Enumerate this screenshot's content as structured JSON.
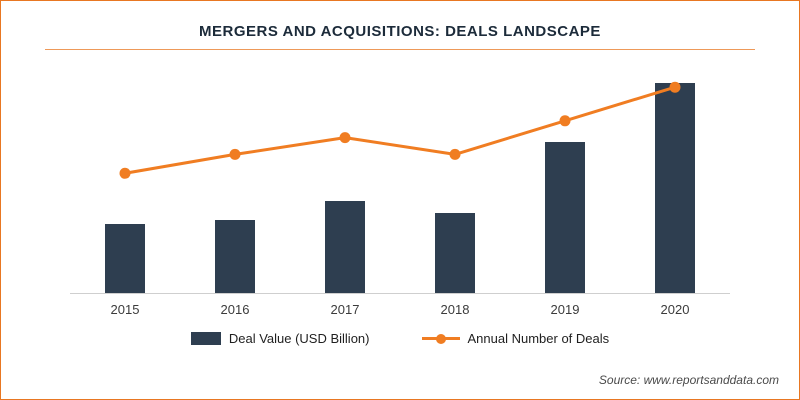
{
  "page": {
    "title": "MERGERS AND ACQUISITIONS: DEALS LANDSCAPE",
    "source": "Source: www.reportsanddata.com"
  },
  "colors": {
    "bar": "#2e3e50",
    "line": "#f07d22",
    "border": "#e87722",
    "title": "#1c2b3a",
    "axis": "#cfcfcf"
  },
  "chart_data": {
    "type": "bar",
    "subtype": "combo-bar-line",
    "title": "MERGERS AND ACQUISITIONS: DEALS LANDSCAPE",
    "categories": [
      "2015",
      "2016",
      "2017",
      "2018",
      "2019",
      "2020"
    ],
    "series": [
      {
        "name": "Deal Value (USD Billion)",
        "type": "bar",
        "values": [
          33,
          35,
          44,
          38,
          72,
          100
        ]
      },
      {
        "name": "Annual Number of Deals",
        "type": "line",
        "values": [
          57,
          66,
          74,
          66,
          82,
          98
        ]
      }
    ],
    "xlabel": "",
    "ylabel": "",
    "ylim": [
      0,
      110
    ],
    "grid": false,
    "legend_position": "bottom",
    "note": "No numeric axis labels are shown in the chart; series values are relative estimates on a 0-110 scale read from bar/marker heights."
  }
}
